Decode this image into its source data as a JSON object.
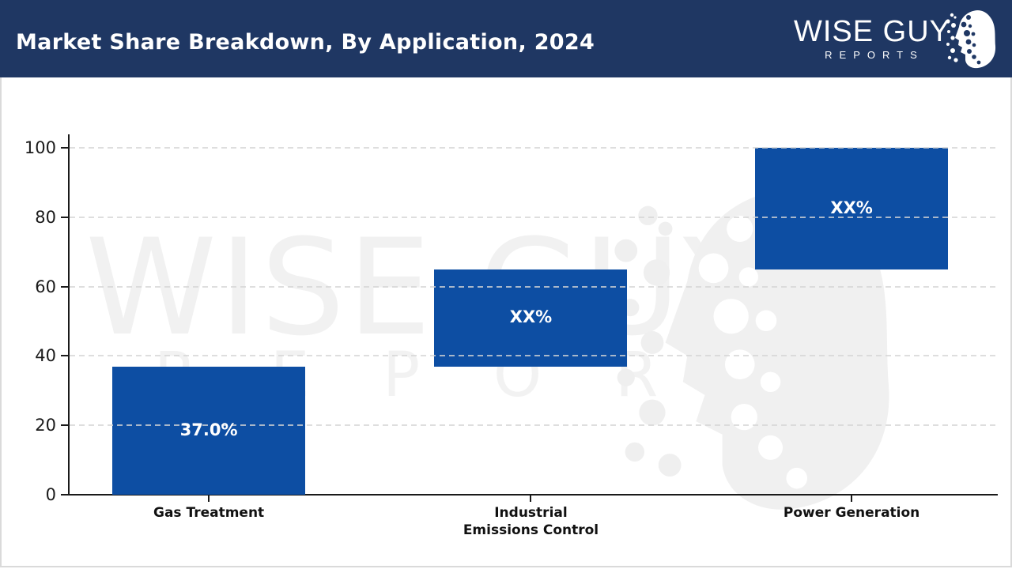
{
  "header": {
    "title": "Market Share Breakdown, By Application, 2024",
    "bg_color": "#1f3763",
    "logo": {
      "line1": "WISE GUY",
      "line2": "REPORTS"
    }
  },
  "watermark": {
    "line1": "WISE GUY",
    "line2": "R E P O R T S"
  },
  "chart_data": {
    "type": "bar",
    "subtype": "waterfall",
    "title": "Market Share Breakdown, By Application, 2024",
    "categories": [
      "Gas Treatment",
      "Industrial\nEmissions Control",
      "Power Generation"
    ],
    "segments": [
      {
        "category": "Gas Treatment",
        "start": 0,
        "end": 37,
        "label": "37.0%"
      },
      {
        "category": "Industrial Emissions Control",
        "start": 37,
        "end": 65,
        "label": "XX%"
      },
      {
        "category": "Power Generation",
        "start": 65,
        "end": 100,
        "label": "XX%"
      }
    ],
    "ylim": [
      0,
      100
    ],
    "yticks": [
      0,
      20,
      40,
      60,
      80,
      100
    ],
    "grid": true,
    "grid_style": "dashed",
    "legend": "none",
    "bar_color": "#0d4ea3",
    "bar_label_color": "#ffffff",
    "axis_color": "#1a1a1a",
    "bar_center_fractions": [
      0.15,
      0.497,
      0.8425
    ]
  }
}
